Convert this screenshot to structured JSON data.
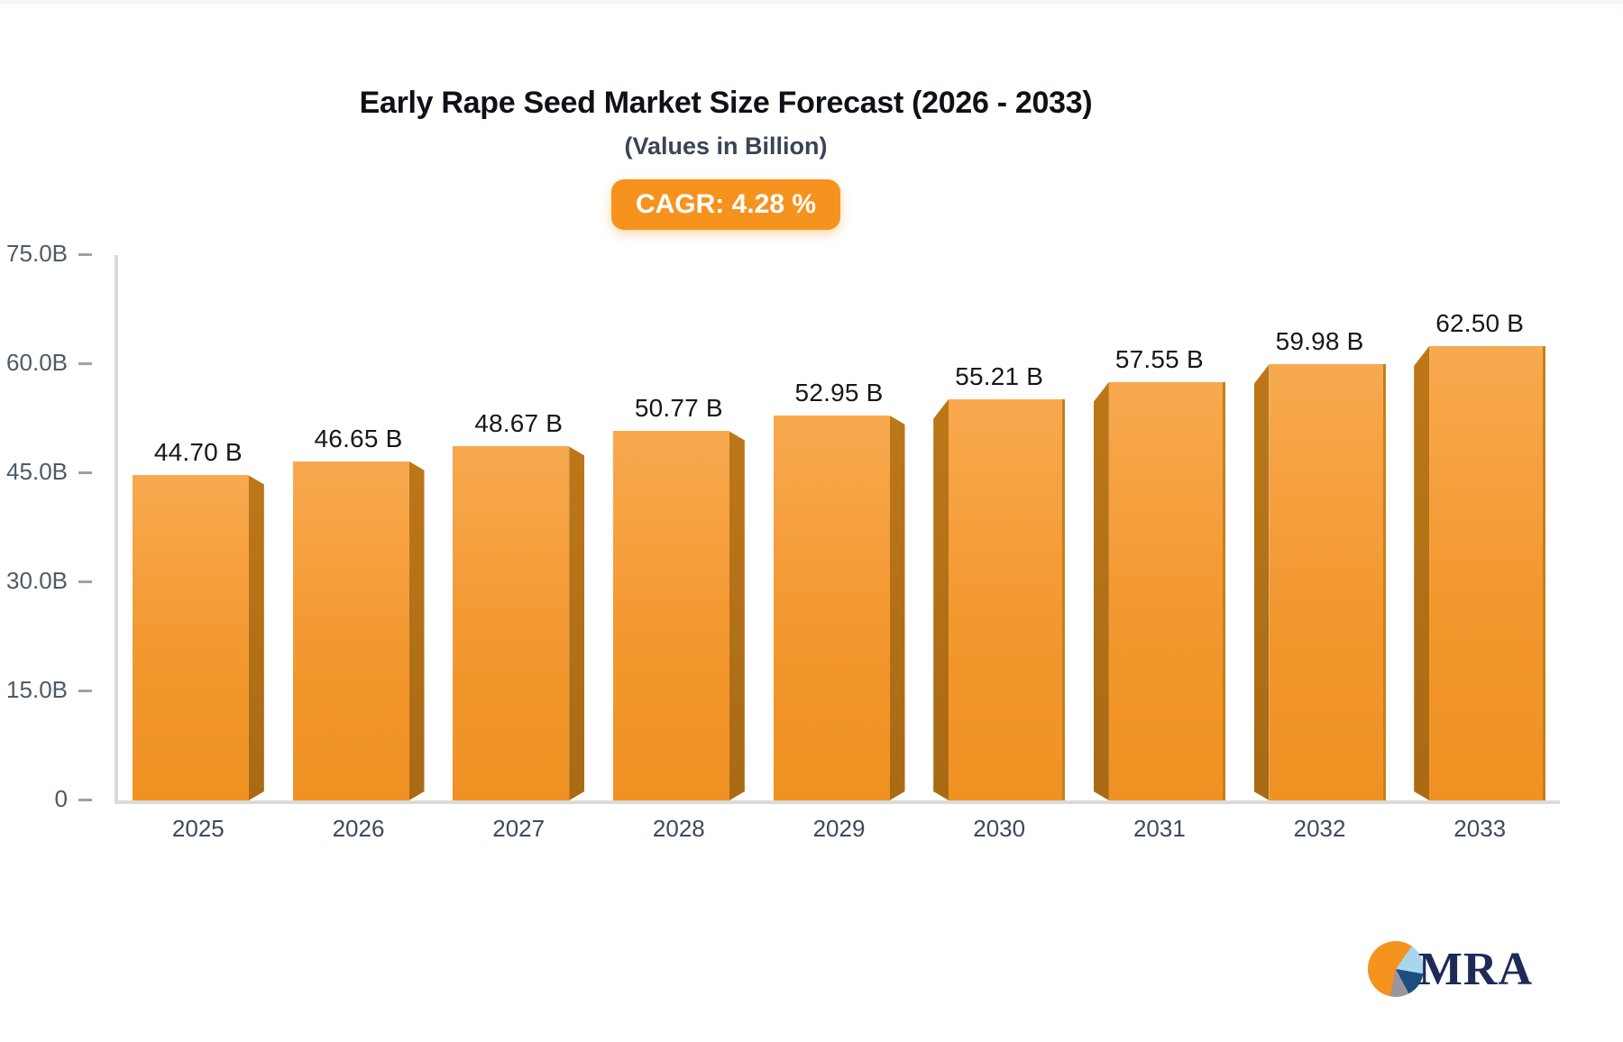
{
  "header": {
    "title": "Early Rape Seed Market Size Forecast (2026 - 2033)",
    "subtitle": "(Values in Billion)",
    "cagr_label": "CAGR: 4.28 %"
  },
  "chart_data": {
    "type": "bar",
    "title": "Early Rape Seed Market Size Forecast (2026 - 2033)",
    "subtitle": "(Values in Billion)",
    "categories": [
      "2025",
      "2026",
      "2027",
      "2028",
      "2029",
      "2030",
      "2031",
      "2032",
      "2033"
    ],
    "values": [
      44.7,
      46.65,
      48.67,
      50.77,
      52.95,
      55.21,
      57.55,
      59.98,
      62.5
    ],
    "value_labels": [
      "44.70 B",
      "46.65 B",
      "48.67 B",
      "50.77 B",
      "52.95 B",
      "55.21 B",
      "57.55 B",
      "59.98 B",
      "62.50 B"
    ],
    "cagr_percent": 4.28,
    "xlabel": "",
    "ylabel": "",
    "ylim": [
      0,
      75
    ],
    "y_ticks": [
      0,
      15,
      30,
      45,
      60,
      75
    ],
    "y_tick_labels": [
      "0",
      "15.0B",
      "30.0B",
      "45.0B",
      "60.0B",
      "75.0B"
    ],
    "grid": false,
    "legend": false,
    "bar_style": "3d-orange",
    "colors": {
      "bar_top": "#F8A94F",
      "bar_bottom": "#F09122",
      "bar_side": "#B57016",
      "badge_background": "#F6931E",
      "badge_text": "#FFFFFF",
      "axis_line": "#D7DBDF",
      "tick_text": "#4E5A67",
      "category_text": "#3B4A5E",
      "value_text": "#15181C",
      "title_text": "#0E1116",
      "subtitle_text": "#3B4454"
    }
  },
  "logo": {
    "text": "MRA",
    "pie_colors": {
      "orange": "#F6921E",
      "light_blue": "#A9D6EF",
      "navy": "#1C4E80",
      "gray": "#9B969B"
    },
    "text_color": "#1E2B57"
  }
}
